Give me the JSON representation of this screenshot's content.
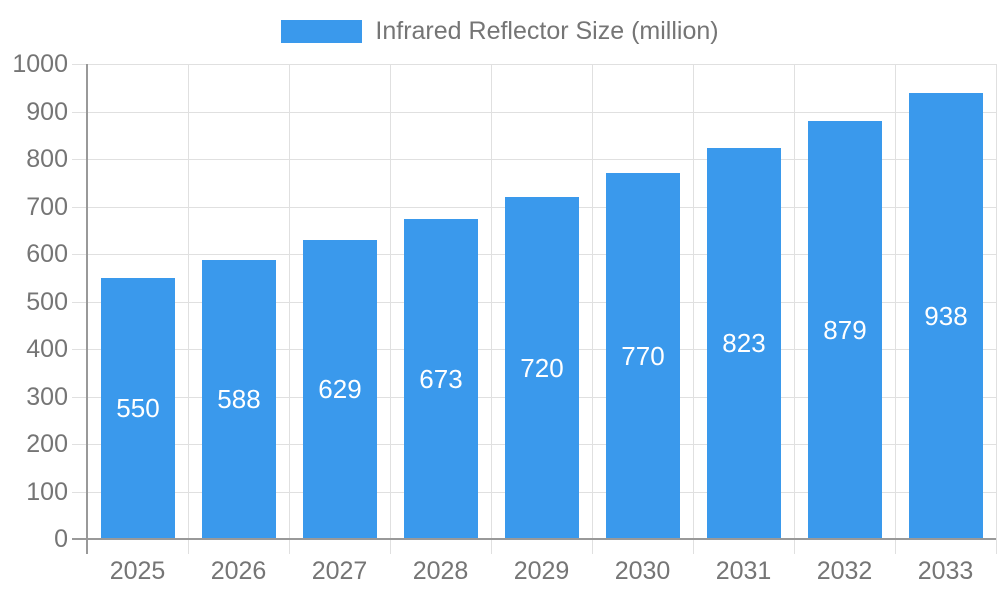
{
  "legend": {
    "label": "Infrared Reflector Size (million)"
  },
  "chart_data": {
    "type": "bar",
    "title": "Infrared Reflector Size (million)",
    "series_name": "Infrared Reflector Size (million)",
    "categories": [
      "2025",
      "2026",
      "2027",
      "2028",
      "2029",
      "2030",
      "2031",
      "2032",
      "2033"
    ],
    "values": [
      550,
      588,
      629,
      673,
      720,
      770,
      823,
      879,
      938
    ],
    "value_labels": [
      "550",
      "588",
      "629",
      "673",
      "720",
      "770",
      "823",
      "879",
      "938"
    ],
    "xlabel": "",
    "ylabel": "",
    "ylim": [
      0,
      1000
    ],
    "ytick_interval": 100,
    "yticks": [
      0,
      100,
      200,
      300,
      400,
      500,
      600,
      700,
      800,
      900,
      1000
    ],
    "grid": true,
    "legend_position": "top",
    "colors": {
      "bar": "#3A99EC",
      "value_label": "#FFFFFF",
      "axis_text": "#757575",
      "axis_line": "#999999",
      "gridline": "#E0E0E0",
      "background": "#FFFFFF"
    }
  }
}
